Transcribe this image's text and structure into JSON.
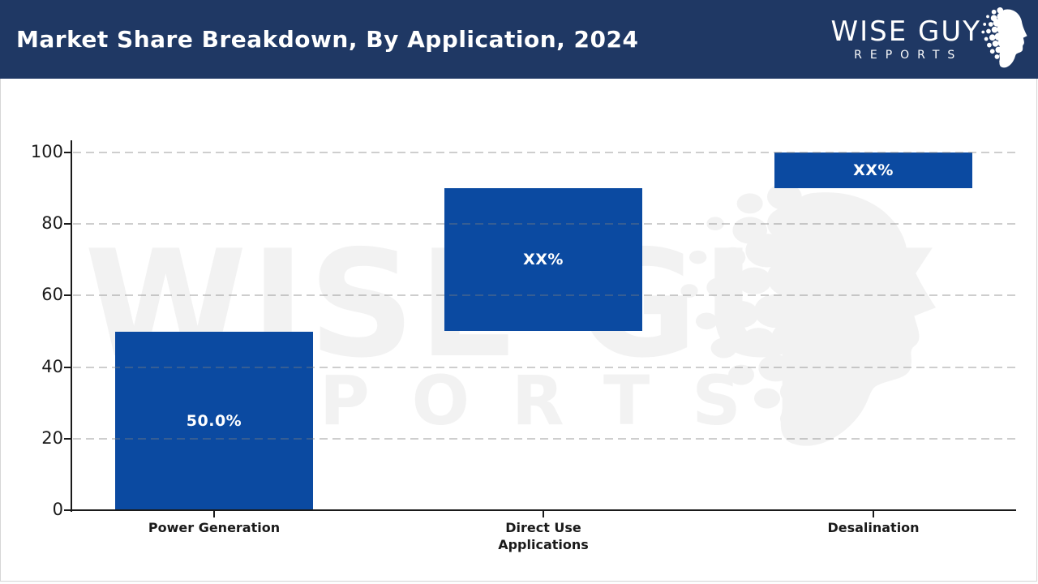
{
  "header": {
    "title": "Market Share Breakdown, By Application, 2024",
    "logo": {
      "wordmark": "WISE GUY",
      "subtext": "REPORTS"
    }
  },
  "watermark": {
    "wordmark": "WISE GUY",
    "subtext": "REPORTS"
  },
  "colors": {
    "header_bg": "#1f3864",
    "bar_blue": "#0b4aa1",
    "bar_label_text": "#ffffff",
    "axis": "#1a1a1a",
    "gridline": "#cfcfcf",
    "watermark": "#f2f2f2",
    "card_border": "#d6d6d6"
  },
  "chart_data": {
    "type": "bar",
    "subtype": "floating-waterfall",
    "title": "Market Share Breakdown, By Application, 2024",
    "xlabel": "",
    "ylabel": "",
    "ylim": [
      0,
      103
    ],
    "yticks": [
      0,
      20,
      40,
      60,
      80,
      100
    ],
    "grid": "horizontal-dashed",
    "legend": "none",
    "categories": [
      "Power Generation",
      "Direct Use Applications",
      "Desalination"
    ],
    "categories_display_lines": [
      [
        "Power Generation"
      ],
      [
        "Direct Use",
        "Applications"
      ],
      [
        "Desalination"
      ]
    ],
    "bars": [
      {
        "category": "Power Generation",
        "start": 0,
        "end": 50,
        "value_label": "50.0%"
      },
      {
        "category": "Direct Use Applications",
        "start": 50,
        "end": 90,
        "value_label": "XX%"
      },
      {
        "category": "Desalination",
        "start": 90,
        "end": 100,
        "value_label": "XX%"
      }
    ]
  }
}
